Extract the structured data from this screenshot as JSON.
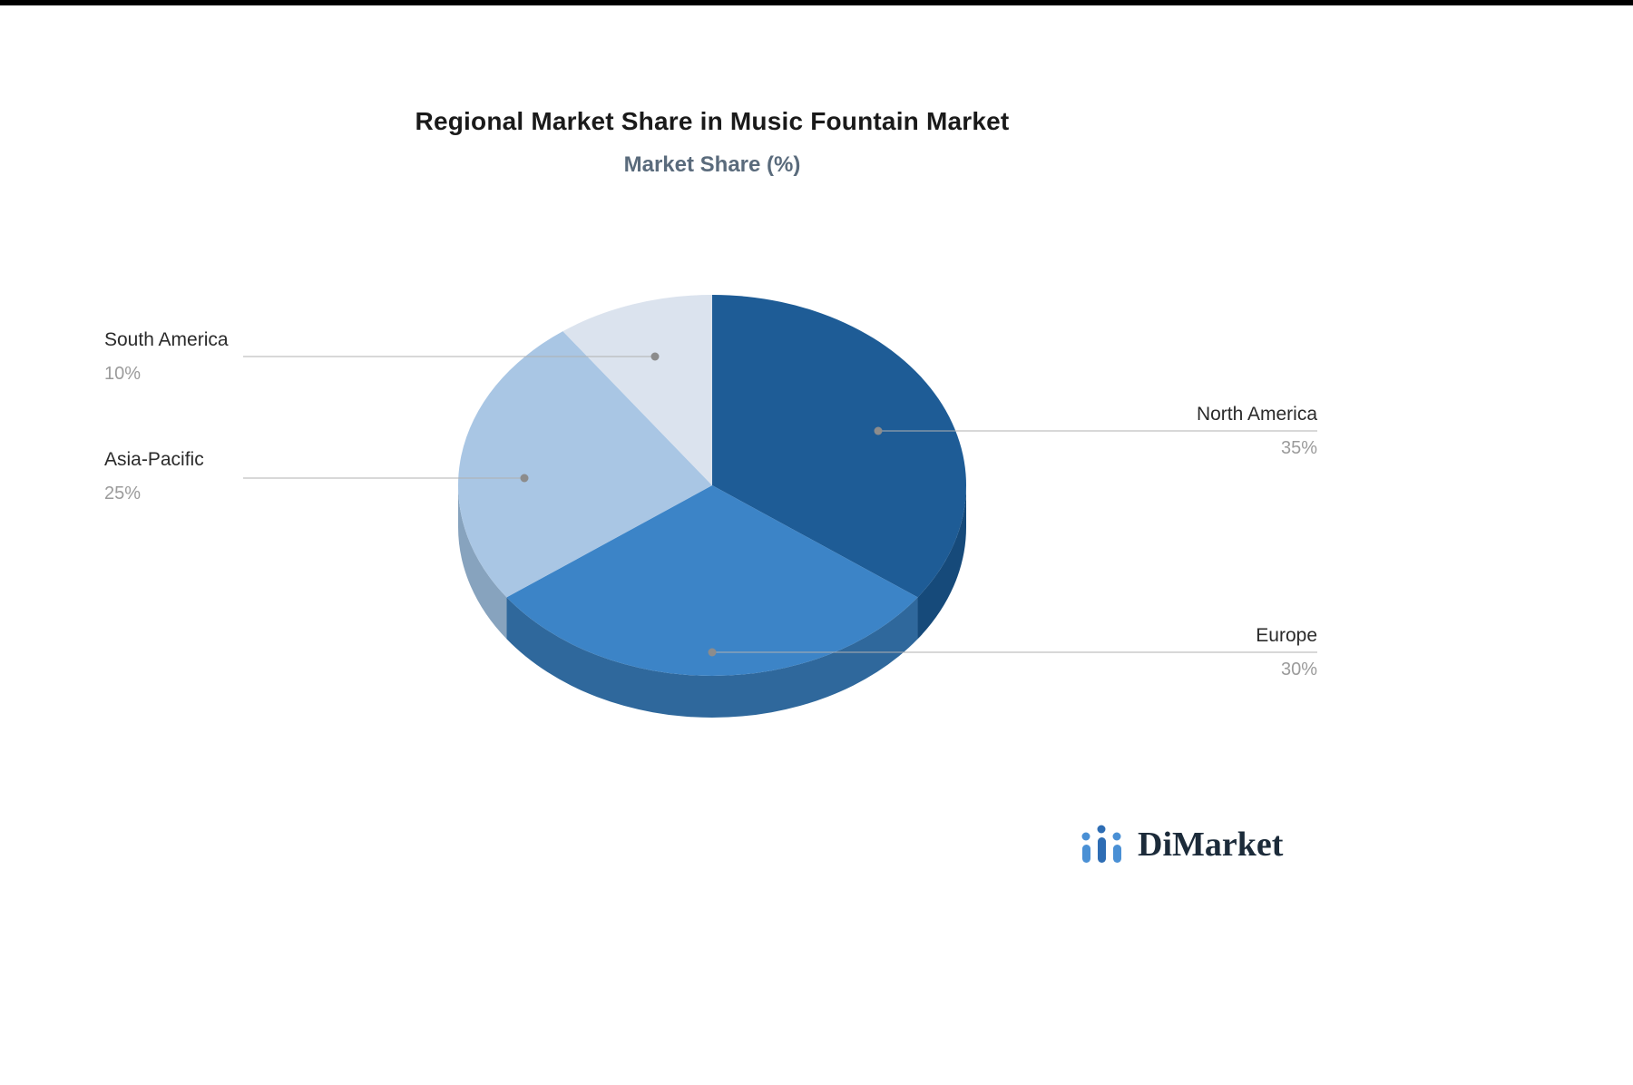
{
  "page": {
    "title": "Regional Market Share in Music Fountain Market",
    "subtitle": "Market Share (%)"
  },
  "brand": {
    "name": "DiMarket",
    "icon": "bar-chart-logo-icon",
    "icon_color": "#3178be",
    "text_color": "#1c2b3a"
  },
  "chart_data": {
    "type": "pie",
    "title": "Regional Market Share in Music Fountain Market",
    "subtitle": "Market Share (%)",
    "unit": "%",
    "style_3d": true,
    "start_angle": "top",
    "clockwise": true,
    "legend_position": "none",
    "label_style": "callout-lines",
    "slices": [
      {
        "label": "North America",
        "value": 35,
        "display": "35%",
        "color": "#1e5c96",
        "side_color": "#164a7a"
      },
      {
        "label": "Europe",
        "value": 30,
        "display": "30%",
        "color": "#3c84c7",
        "side_color": "#2f689c"
      },
      {
        "label": "Asia-Pacific",
        "value": 25,
        "display": "25%",
        "color": "#a9c6e4",
        "side_color": "#87a3be"
      },
      {
        "label": "South America",
        "value": 10,
        "display": "10%",
        "color": "#dbe3ee",
        "side_color": "#bac5d5"
      }
    ]
  }
}
